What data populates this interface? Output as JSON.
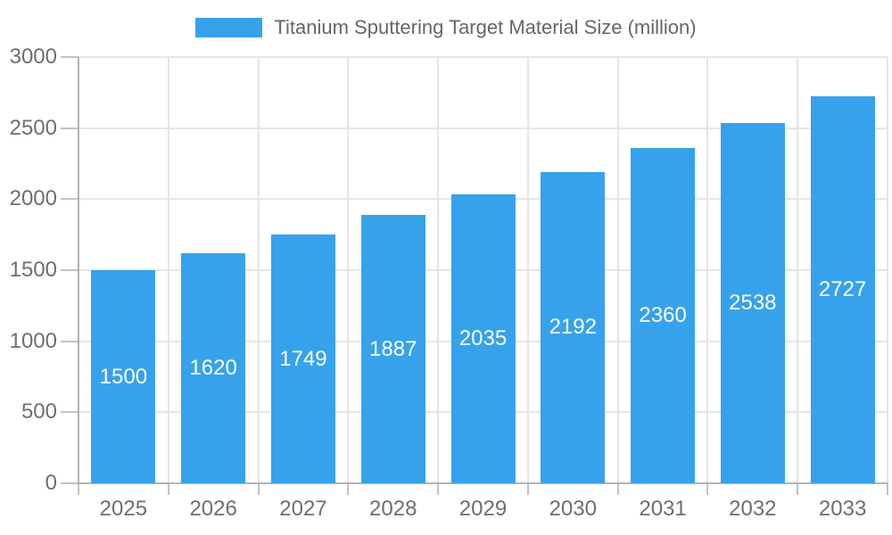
{
  "chart_data": {
    "type": "bar",
    "title": "Titanium Sputtering Target Material Size (million)",
    "legend_position": "top",
    "categories": [
      "2025",
      "2026",
      "2027",
      "2028",
      "2029",
      "2030",
      "2031",
      "2032",
      "2033"
    ],
    "series": [
      {
        "name": "Titanium Sputtering Target Material Size (million)",
        "values": [
          1500,
          1620,
          1749,
          1887,
          2035,
          2192,
          2360,
          2538,
          2727
        ]
      }
    ],
    "value_labels": "inside-center",
    "xlabel": "",
    "ylabel": "",
    "ylim": [
      0,
      3000
    ],
    "yticks": [
      0,
      500,
      1000,
      1500,
      2000,
      2500,
      3000
    ],
    "grid": true,
    "colors": {
      "bar": "#36A2EB",
      "grid": "#E5E5E5",
      "axis": "#B3B3B3",
      "tick_mark": "#C2C2C2",
      "tick_text": "#6E6E6E",
      "value_text": "#FFFFFF",
      "legend_text": "#666666",
      "background": "#FFFFFF"
    }
  }
}
